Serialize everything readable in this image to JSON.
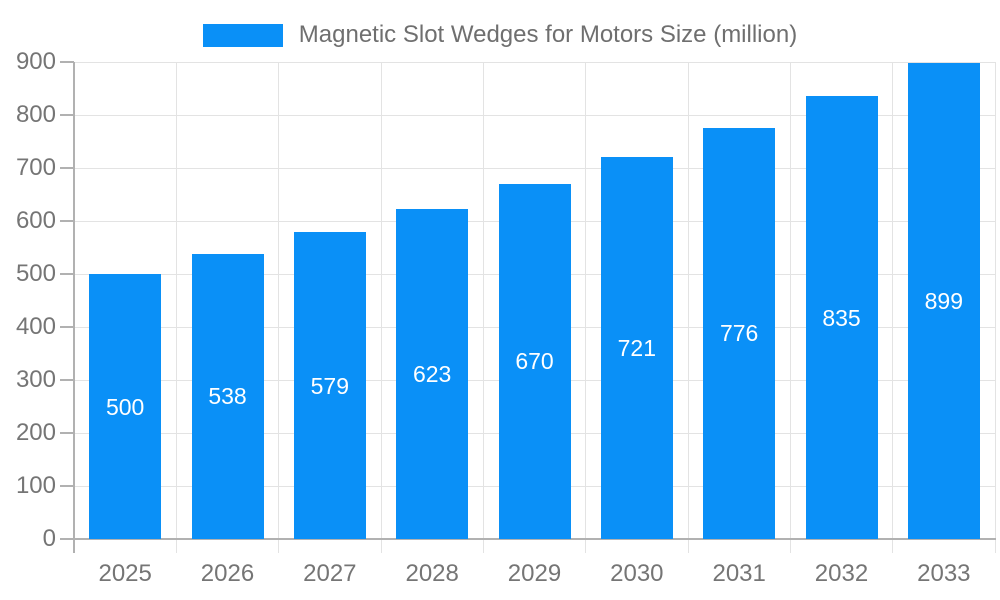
{
  "chart_data": {
    "type": "bar",
    "title": "Magnetic Slot Wedges for Motors Size (million)",
    "legend": [
      "Magnetic Slot Wedges for Motors Size (million)"
    ],
    "legend_position": "top",
    "categories": [
      "2025",
      "2026",
      "2027",
      "2028",
      "2029",
      "2030",
      "2031",
      "2032",
      "2033"
    ],
    "series": [
      {
        "name": "Magnetic Slot Wedges for Motors Size (million)",
        "values": [
          500,
          538,
          579,
          623,
          670,
          721,
          776,
          835,
          899
        ]
      }
    ],
    "xlabel": "",
    "ylabel": "",
    "ylim": [
      0,
      900
    ],
    "yticks": [
      0,
      100,
      200,
      300,
      400,
      500,
      600,
      700,
      800,
      900
    ],
    "grid": true,
    "colors": {
      "bar": "#0a90f7",
      "bar_label": "#ffffff",
      "axis_text": "#757575",
      "title_text": "#6f6f6f",
      "gridline": "#e3e3e3",
      "axis_line": "#b1b1b1",
      "background": "#ffffff"
    }
  }
}
